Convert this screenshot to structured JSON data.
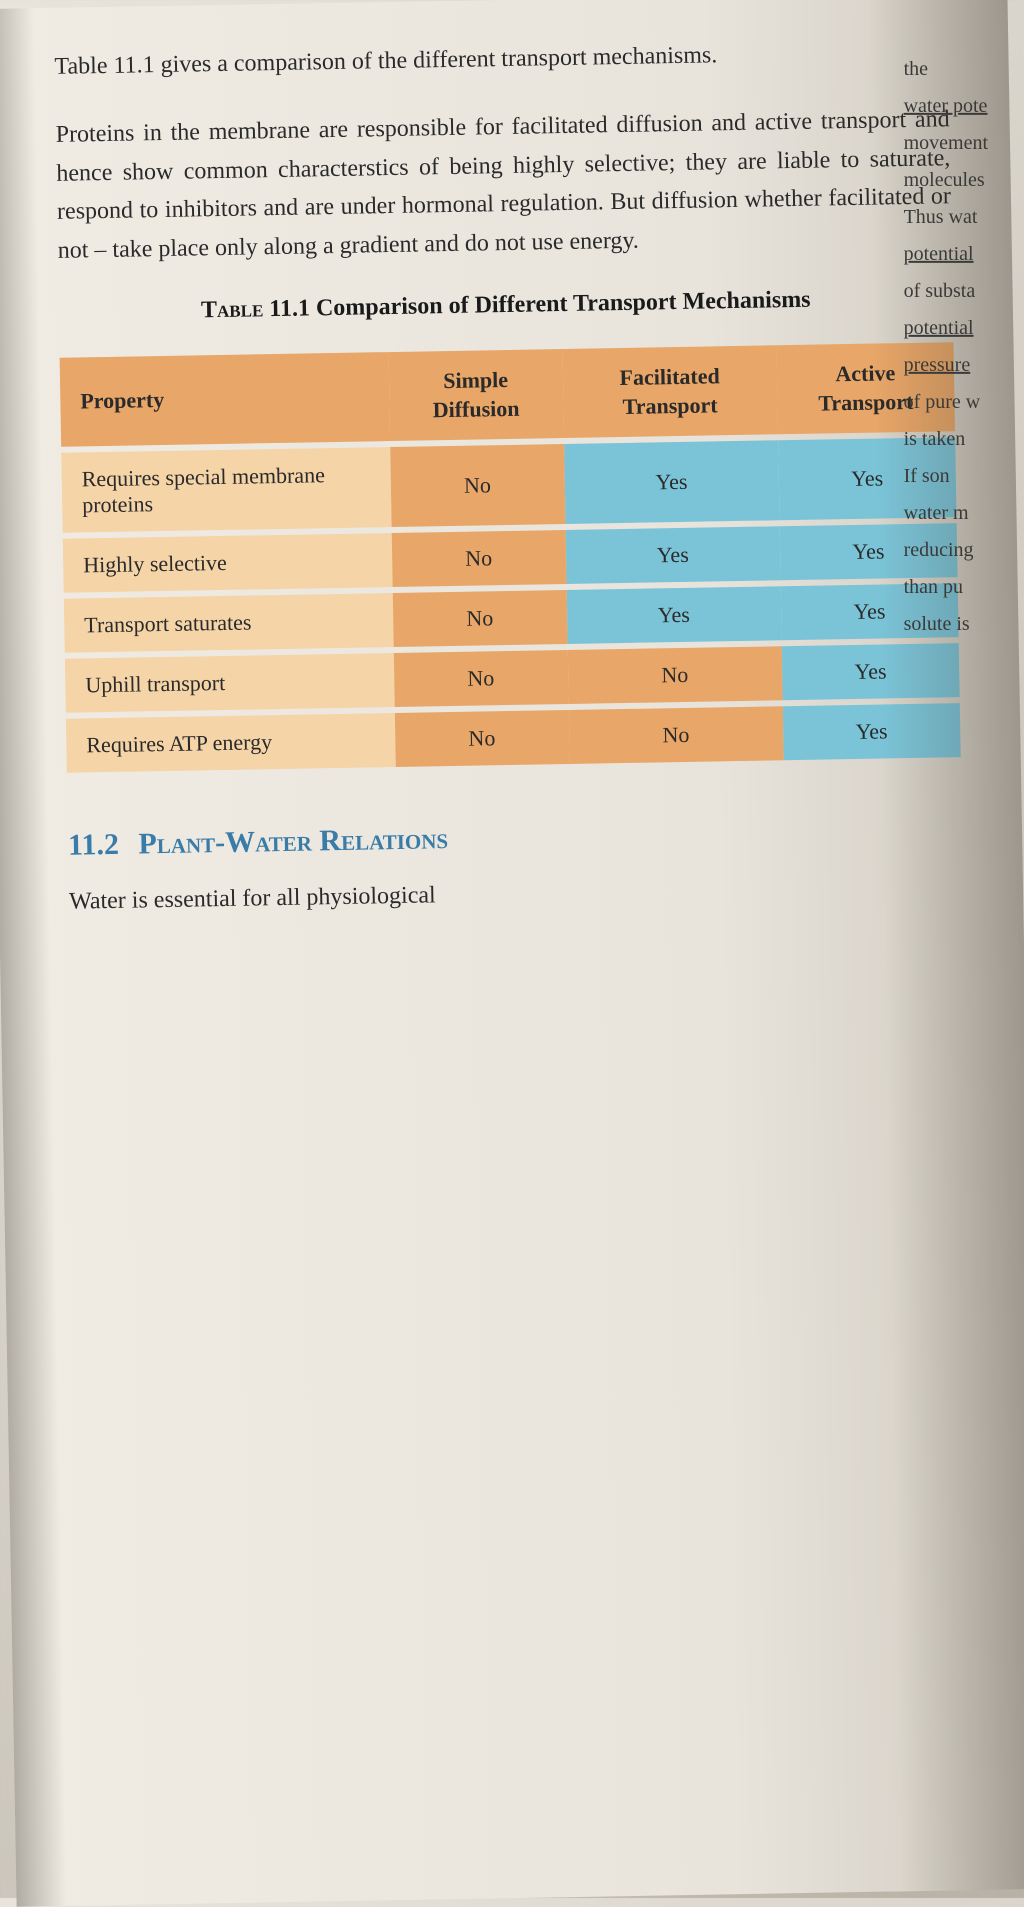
{
  "intro": {
    "line1": "Table 11.1 gives a comparison of the different transport mechanisms.",
    "paragraph": "Proteins in the membrane are responsible for facilitated diffusion and active transport and hence show common characterstics of being highly selective; they are liable to saturate, respond to inhibitors and are under hormonal regulation. But diffusion whether facilitated or not – take place only along a gradient and do not use energy."
  },
  "table": {
    "title_label": "Table 11.1",
    "title_text": "Comparison of Different Transport Mechanisms",
    "headers": {
      "property": "Property",
      "simple": "Simple Diffusion",
      "facilitated": "Facilitated Transport",
      "active": "Active Transport"
    },
    "rows": [
      {
        "property": "Requires special membrane proteins",
        "simple": "No",
        "facilitated": "Yes",
        "active": "Yes"
      },
      {
        "property": "Highly selective",
        "simple": "No",
        "facilitated": "Yes",
        "active": "Yes"
      },
      {
        "property": "Transport saturates",
        "simple": "No",
        "facilitated": "Yes",
        "active": "Yes"
      },
      {
        "property": "Uphill transport",
        "simple": "No",
        "facilitated": "No",
        "active": "Yes"
      },
      {
        "property": "Requires ATP energy",
        "simple": "No",
        "facilitated": "No",
        "active": "Yes"
      }
    ],
    "colors": {
      "header_bg": "#e8a668",
      "light_orange": "#f5d4a8",
      "orange": "#e8a668",
      "blue": "#7bc4d8"
    }
  },
  "section": {
    "number": "11.2",
    "title": "Plant-Water Relations",
    "body": "Water is essential for all physiological"
  },
  "edge": {
    "words": [
      "the",
      "water pote",
      "movement",
      "molecules",
      "Thus wat",
      "potential",
      "of substa",
      "potential",
      "pressure",
      "of pure w",
      "is taken",
      "If son",
      "water m",
      "reducing",
      "than pu",
      "solute is"
    ]
  }
}
